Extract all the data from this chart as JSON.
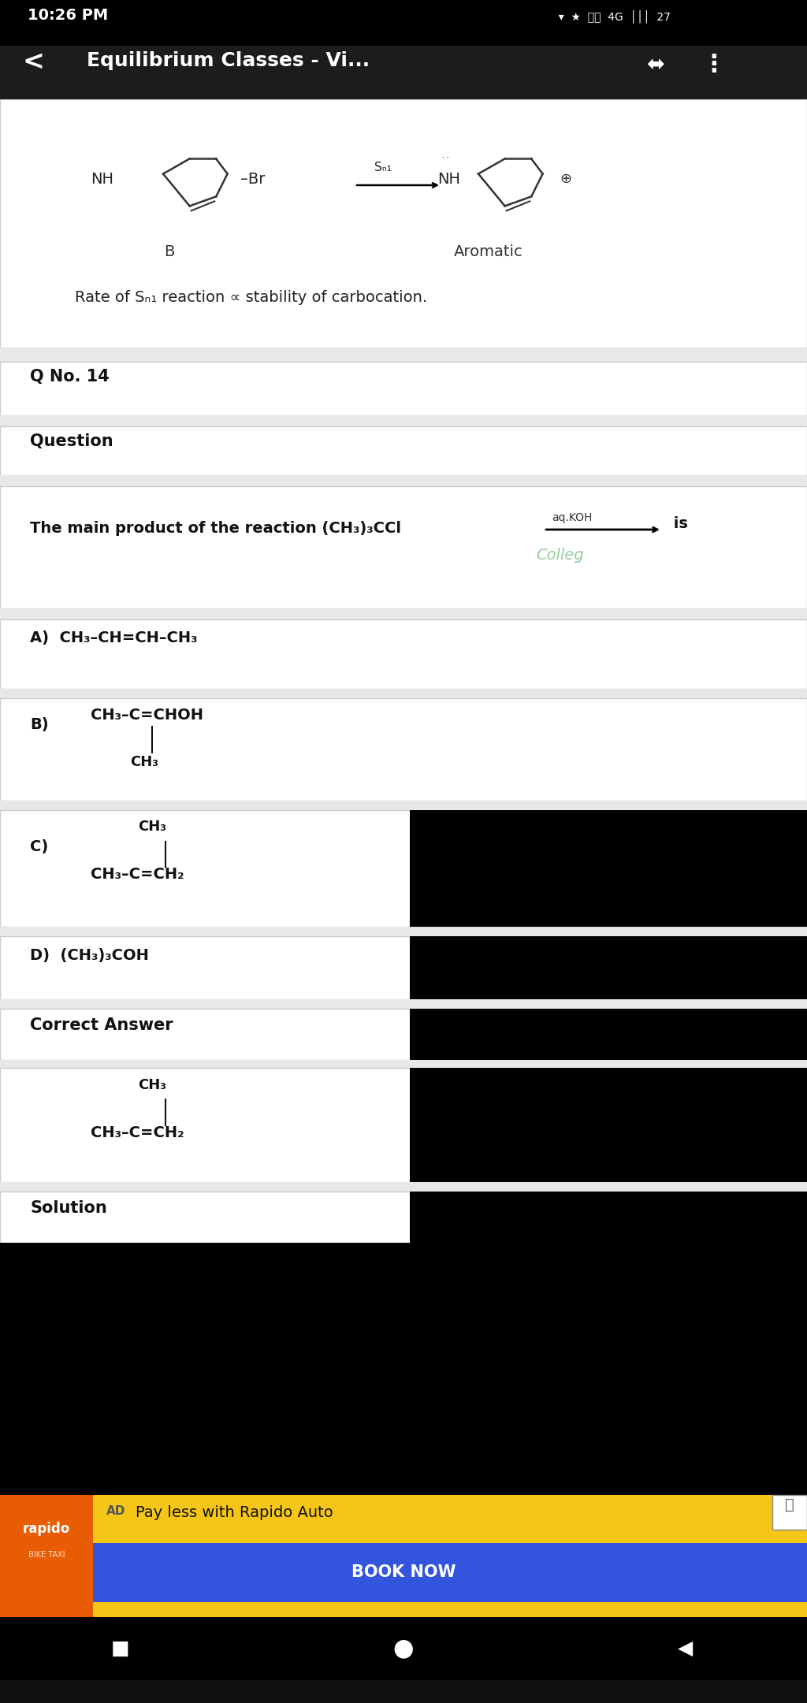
{
  "status_bar_time": "10:26 PM",
  "status_bar_bg": "#000000",
  "status_bar_text_color": "#ffffff",
  "nav_bar_bg": "#1c1c1c",
  "nav_bar_title": "Equilibrium Classes - Vi...",
  "nav_bar_text_color": "#ffffff",
  "page_bg": "#e8e8e8",
  "content_bg": "#ffffff",
  "border_color": "#cccccc",
  "q_no_label": "Q No. 14",
  "question_label": "Question",
  "question_text": "The main product of the reaction (CH₃)₃CCl",
  "question_reagent": "aq.KOH",
  "question_end": " is",
  "option_a_text": "CH₃–CH=CH–CH₃",
  "option_b_line1": "CH₃–C=CHOH",
  "option_b_branch": "CH₃",
  "option_c_top": "CH₃",
  "option_c_line2": "CH₃–C=CH₂",
  "option_d_text": "(CH₃)₃COH",
  "correct_answer_label": "Correct Answer",
  "correct_top": "CH₃",
  "correct_line2": "CH₃–C=CH₂",
  "solution_label": "Solution",
  "rate_text": "Rate of Sₙ₁ reaction ∝ stability of carbocation.",
  "bottom_ad_bg": "#f5c518",
  "bottom_ad_text": "Pay less with Rapido Auto",
  "bottom_book_btn_bg": "#3355dd",
  "bottom_book_btn_text": "BOOK NOW",
  "figure_width": 10.24,
  "figure_height": 21.61
}
